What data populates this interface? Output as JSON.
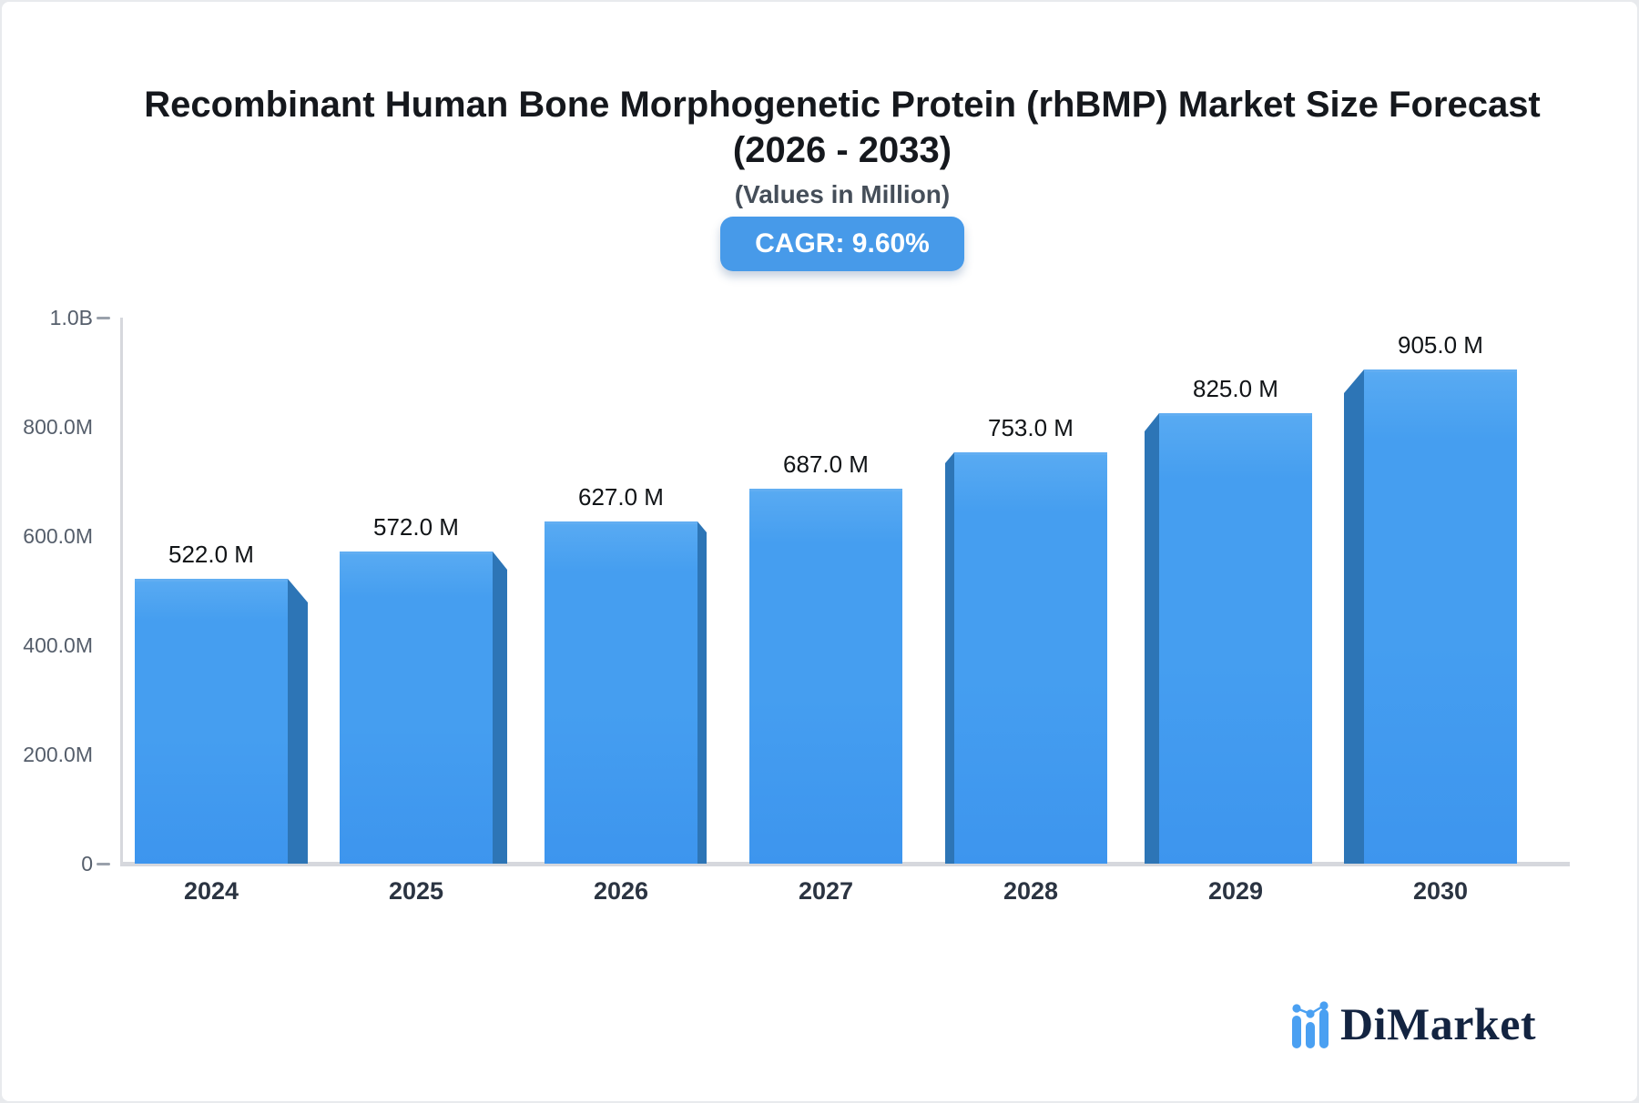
{
  "header": {
    "title_line1": "Recombinant Human Bone Morphogenetic Protein (rhBMP) Market Size Forecast",
    "title_line2": "(2026 - 2033)",
    "subtitle": "(Values in Million)",
    "cagr_badge": "CAGR: 9.60%"
  },
  "chart_data": {
    "type": "bar",
    "title": "Recombinant Human Bone Morphogenetic Protein (rhBMP) Market Size Forecast (2026 - 2033)",
    "subtitle": "(Values in Million)",
    "cagr": "9.60%",
    "categories": [
      "2024",
      "2025",
      "2026",
      "2027",
      "2028",
      "2029",
      "2030"
    ],
    "values": [
      522,
      572,
      627,
      687,
      753,
      825,
      905
    ],
    "value_labels": [
      "522.0 M",
      "572.0 M",
      "627.0 M",
      "687.0 M",
      "753.0 M",
      "825.0 M",
      "905.0 M"
    ],
    "value_unit": "Million",
    "ylim": [
      0,
      1000
    ],
    "ytick_labels": [
      "1.0B",
      "800.0M",
      "600.0M",
      "400.0M",
      "200.0M",
      "0"
    ],
    "grid": false,
    "legend": false
  },
  "colors": {
    "title": "#15181d",
    "subtitle": "#454e59",
    "badge_bg": "#479ae9",
    "axis_line": "#d6d8dd",
    "tick": "#9aa1ab",
    "y_label": "#555e6b",
    "x_label": "#2b3442",
    "value_label": "#111417",
    "bar_front": "#459ef0",
    "bar_front_top": "#58aaf2",
    "bar_front_deep": "#3d95ee",
    "bar_top_edge": "#62aef2",
    "bar_side": "#2d75b6",
    "logo_blue": "#4aa0f2",
    "logo_navy": "#132441"
  },
  "logo": {
    "text": "DiMarket",
    "icon": "bar-chart-with-trendline-icon"
  }
}
